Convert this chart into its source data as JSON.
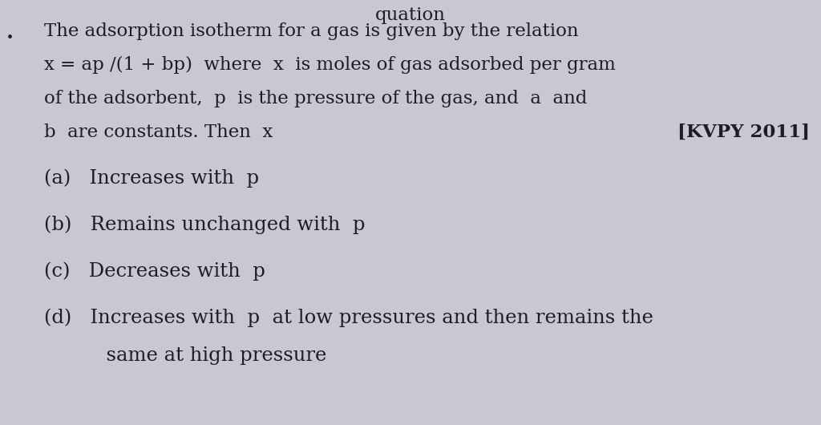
{
  "background_color": "#c8c8d0",
  "top_text": "quation",
  "paragraph_line1": "The adsorption isotherm for a gas is given by the relation",
  "paragraph_line2": "x = ap /(1 + bp)  where  x  is moles of gas adsorbed per gram",
  "paragraph_line3": "of the adsorbent,  p  is the pressure of the gas, and  a  and",
  "paragraph_line4": "b  are constants. Then  x",
  "tag": "[KVPY 2011]",
  "option_a": "(a)   Increases with  p",
  "option_b": "(b)   Remains unchanged with  p",
  "option_c": "(c)   Decreases with  p",
  "option_d_line1": "(d)   Increases with  p  at low pressures and then remains the",
  "option_d_line2": "          same at high pressure",
  "text_color": "#1c1c2a",
  "font_size_paragraph": 16.5,
  "font_size_options": 17.5,
  "font_size_tag": 16.5,
  "font_family": "DejaVu Serif"
}
